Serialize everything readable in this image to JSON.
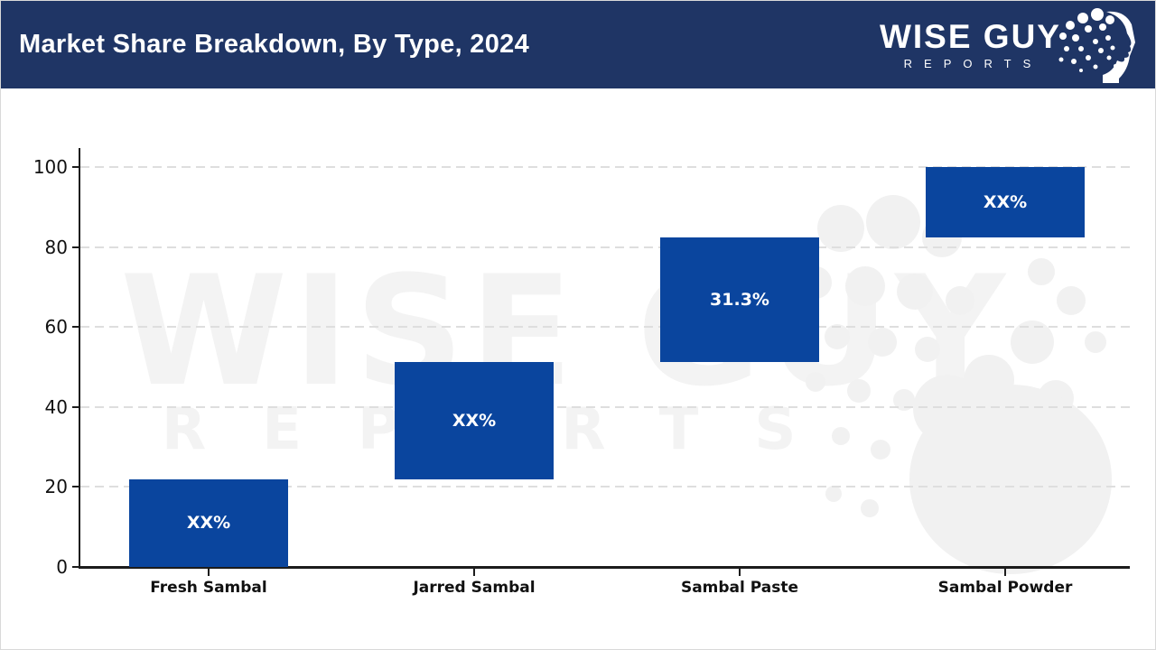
{
  "header": {
    "title": "Market Share Breakdown, By Type, 2024",
    "brand_line1": "WISE GUY",
    "brand_line2": "REPORTS"
  },
  "watermark": {
    "line1": "WISE GUY",
    "line2": "REPORTS"
  },
  "colors": {
    "header_bg": "#1f3565",
    "bar": "#0a459e",
    "gridline": "#dedede",
    "watermark": "#f3f3f3",
    "axis": "#1c1c1c"
  },
  "chart_data": {
    "type": "bar",
    "variant": "waterfall",
    "title": "Market Share Breakdown, By Type, 2024",
    "xlabel": "",
    "ylabel": "",
    "categories": [
      "Fresh Sambal",
      "Jarred Sambal",
      "Sambal Paste",
      "Sambal Powder"
    ],
    "segments": [
      {
        "category": "Fresh Sambal",
        "start": 0,
        "end": 21.9,
        "label": "XX%"
      },
      {
        "category": "Jarred Sambal",
        "start": 21.9,
        "end": 51.2,
        "label": "XX%"
      },
      {
        "category": "Sambal Paste",
        "start": 51.2,
        "end": 82.5,
        "label": "31.3%",
        "value": 31.3
      },
      {
        "category": "Sambal Powder",
        "start": 82.5,
        "end": 100,
        "label": "XX%"
      }
    ],
    "yticks": [
      0,
      20,
      40,
      60,
      80,
      100
    ],
    "ylim": [
      0,
      105
    ],
    "grid": "dashed-horizontal",
    "legend": "none",
    "bar_color": "#0a459e"
  }
}
